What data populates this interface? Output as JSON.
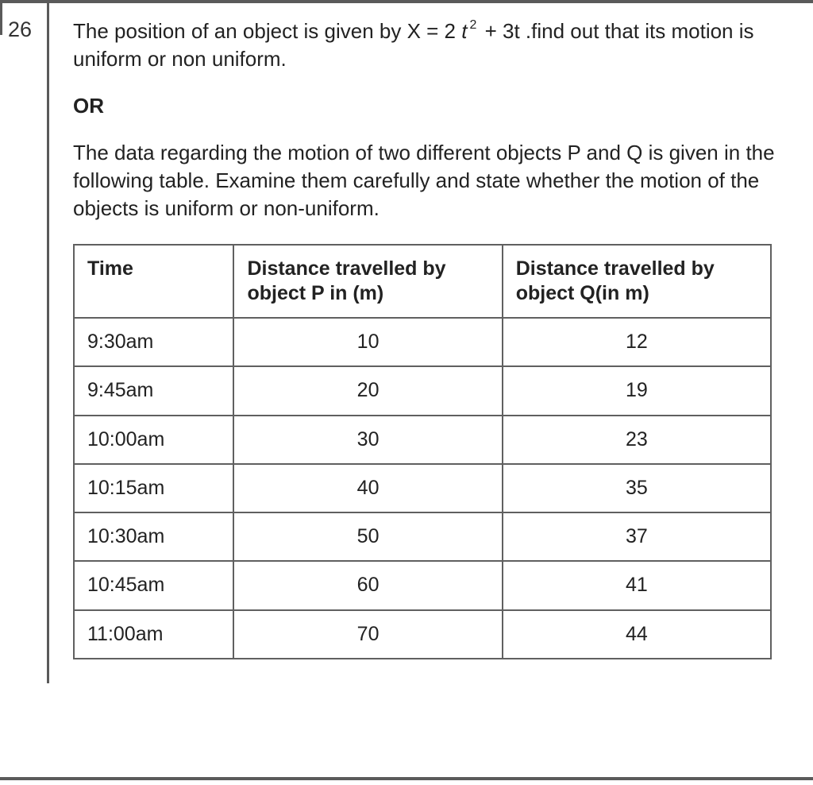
{
  "question_number": "26",
  "para1_a": "The position of an object is given by X = 2",
  "para1_t": "t",
  "para1_sq": "2",
  "para1_b": " + 3t .find out that its motion is uniform or non uniform.",
  "or_label": "OR",
  "para2": "The data regarding the motion of two different objects P and Q is given in the following table. Examine them carefully and state whether the motion of the objects is uniform or non-uniform.",
  "table": {
    "headers": {
      "time": "Time",
      "p": "Distance travelled by object P in (m)",
      "q": "Distance travelled by object Q(in m)"
    },
    "rows": [
      {
        "time": "9:30am",
        "p": "10",
        "q": "12"
      },
      {
        "time": "9:45am",
        "p": "20",
        "q": "19"
      },
      {
        "time": "10:00am",
        "p": "30",
        "q": "23"
      },
      {
        "time": "10:15am",
        "p": "40",
        "q": "35"
      },
      {
        "time": "10:30am",
        "p": "50",
        "q": "37"
      },
      {
        "time": "10:45am",
        "p": "60",
        "q": "41"
      },
      {
        "time": "11:00am",
        "p": "70",
        "q": "44"
      }
    ]
  }
}
